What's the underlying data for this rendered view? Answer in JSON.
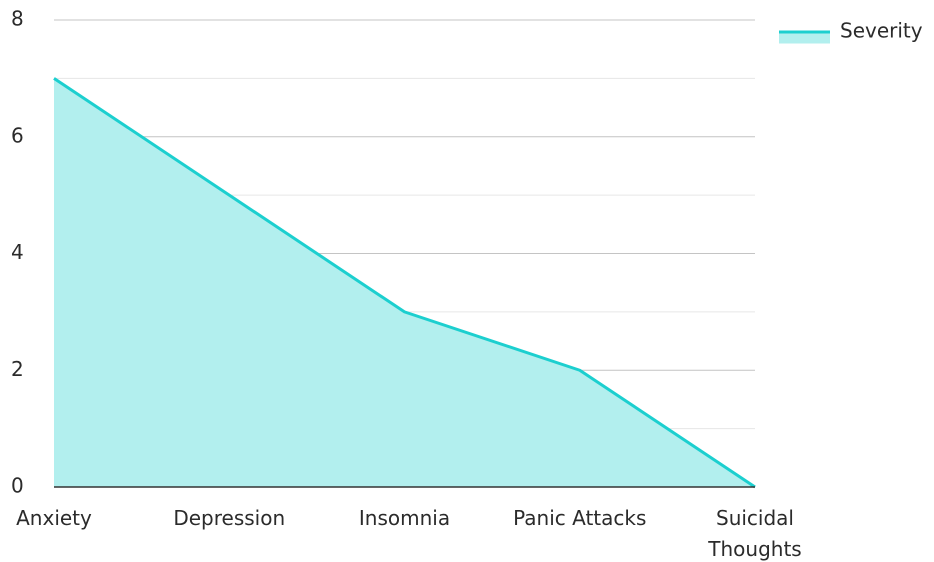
{
  "chart_data": {
    "type": "area",
    "title": "",
    "xlabel": "",
    "ylabel": "",
    "categories": [
      "Anxiety",
      "Depression",
      "Insomnia",
      "Panic Attacks",
      "Suicidal Thoughts"
    ],
    "series": [
      {
        "name": "Severity",
        "values": [
          7,
          5,
          3,
          2,
          0
        ],
        "line_color": "#1ccfcf",
        "fill_color": "#b2efee"
      }
    ],
    "ylim": [
      0,
      8
    ],
    "y_ticks": [
      0,
      2,
      4,
      6,
      8
    ],
    "grid": true,
    "legend": "top-right"
  }
}
